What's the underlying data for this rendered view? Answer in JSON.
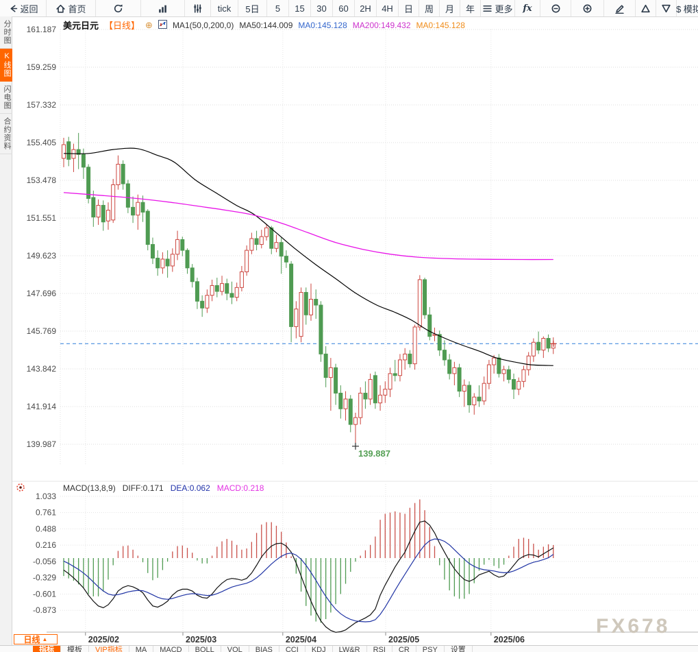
{
  "toolbar": {
    "items": [
      {
        "id": "back",
        "label": "返回",
        "icon": "back"
      },
      {
        "id": "home",
        "label": "首页",
        "icon": "home"
      },
      {
        "id": "refresh",
        "icon": "refresh"
      },
      {
        "id": "column-chart",
        "icon": "column-chart"
      },
      {
        "id": "indicator-settings",
        "icon": "sliders"
      },
      {
        "id": "tick",
        "label": "tick"
      },
      {
        "id": "5d",
        "label": "5日"
      },
      {
        "id": "m5",
        "label": "5"
      },
      {
        "id": "m15",
        "label": "15"
      },
      {
        "id": "m30",
        "label": "30"
      },
      {
        "id": "m60",
        "label": "60"
      },
      {
        "id": "h2",
        "label": "2H"
      },
      {
        "id": "h4",
        "label": "4H"
      },
      {
        "id": "day",
        "label": "日"
      },
      {
        "id": "week",
        "label": "周"
      },
      {
        "id": "month",
        "label": "月"
      },
      {
        "id": "year",
        "label": "年"
      },
      {
        "id": "more",
        "label": "更多",
        "icon": "menu"
      },
      {
        "id": "fx",
        "label": "fx",
        "fx": true
      },
      {
        "id": "zoom-out",
        "icon": "zoom-out"
      },
      {
        "id": "zoom-in",
        "icon": "zoom-in"
      },
      {
        "id": "draw",
        "icon": "pencil"
      },
      {
        "id": "pattern-up",
        "icon": "tri-up"
      },
      {
        "id": "pattern-down",
        "icon": "tri-down"
      },
      {
        "id": "sim-trade",
        "label": "$ 模拟交易"
      }
    ]
  },
  "sidebar": {
    "tabs": [
      {
        "id": "time-share",
        "label": "分时图",
        "active": false
      },
      {
        "id": "kline",
        "label": "K线图",
        "active": true
      },
      {
        "id": "lightning",
        "label": "闪电图",
        "active": false
      },
      {
        "id": "contract-info",
        "label": "合约资料",
        "active": false
      }
    ]
  },
  "price_panel": {
    "symbol": "美元日元",
    "period_tag": "【日线】",
    "expand_icon": "⊕",
    "ma_items": [
      {
        "text": "MA1(50,0,200,0)",
        "color": "#333333"
      },
      {
        "text": "MA50:144.009",
        "color": "#333333"
      },
      {
        "text": "MA0:145.128",
        "color": "#3366cc"
      },
      {
        "text": "MA200:149.432",
        "color": "#cc33cc"
      },
      {
        "text": "MA0:145.128",
        "color": "#ef8c1a"
      }
    ]
  },
  "macd_panel": {
    "items": [
      {
        "text": "MACD(13,8,9)",
        "color": "#333333"
      },
      {
        "text": "DIFF:0.171",
        "color": "#333333"
      },
      {
        "text": "DEA:0.062",
        "color": "#2233aa"
      },
      {
        "text": "MACD:0.218",
        "color": "#e333e3"
      }
    ]
  },
  "bottom": {
    "period_button_label": "日线",
    "period_button_arrow": "▲",
    "tabs": [
      {
        "label": "指标",
        "style": "active"
      },
      {
        "label": "模板",
        "style": ""
      },
      {
        "label": "VIP指标",
        "style": "vip"
      },
      {
        "label": "MA",
        "style": ""
      },
      {
        "label": "MACD",
        "style": ""
      },
      {
        "label": "BOLL",
        "style": ""
      },
      {
        "label": "VOL",
        "style": ""
      },
      {
        "label": "BIAS",
        "style": ""
      },
      {
        "label": "CCI",
        "style": ""
      },
      {
        "label": "KDJ",
        "style": ""
      },
      {
        "label": "LW&R",
        "style": ""
      },
      {
        "label": "RSI",
        "style": ""
      },
      {
        "label": "CR",
        "style": ""
      },
      {
        "label": "PSY",
        "style": ""
      },
      {
        "label": "设置",
        "style": ""
      }
    ]
  },
  "watermark": "FX678",
  "chart_data": {
    "type": "candlestick+macd",
    "symbol": "美元日元",
    "period": "日线",
    "colors": {
      "up": "#cc453e",
      "down": "#4f9b52",
      "ma50": "#000000",
      "ma200": "#e814e8",
      "diff": "#111111",
      "dea": "#2135a5",
      "hist_up": "#c9504a",
      "hist_down": "#4f9b52",
      "price_line": "#2f7fd9",
      "low_label": "#55a055",
      "grid": "#dcdcdc",
      "axis_text": "#4a4a4a"
    },
    "price_axis": [
      161.187,
      159.259,
      157.332,
      155.405,
      153.478,
      151.551,
      149.623,
      147.696,
      145.769,
      143.842,
      141.914,
      139.987
    ],
    "macd_axis": [
      1.033,
      0.761,
      0.488,
      0.216,
      -0.056,
      -0.329,
      -0.601,
      -0.873
    ],
    "months": [
      {
        "index": 4.4,
        "label": "2025/02"
      },
      {
        "index": 24.1,
        "label": "2025/03"
      },
      {
        "index": 44.3,
        "label": "2025/04"
      },
      {
        "index": 65.1,
        "label": "2025/05"
      },
      {
        "index": 86.4,
        "label": "2025/06"
      }
    ],
    "current_price": 145.128,
    "low_marker": {
      "index": 59,
      "price": 139.887,
      "label": "139.887"
    },
    "last_marker": {
      "index": 99,
      "price": 145.128
    },
    "candles": [
      [
        154.6,
        155.65,
        154.15,
        155.3
      ],
      [
        155.45,
        155.7,
        154.2,
        154.55
      ],
      [
        154.6,
        155.35,
        153.9,
        155.05
      ],
      [
        155.05,
        155.9,
        154.05,
        154.8
      ],
      [
        154.8,
        155.1,
        153.55,
        154.15
      ],
      [
        154.15,
        154.3,
        152.3,
        152.55
      ],
      [
        152.6,
        152.95,
        151.1,
        151.6
      ],
      [
        151.6,
        152.5,
        151.2,
        152.2
      ],
      [
        152.2,
        152.45,
        150.9,
        151.35
      ],
      [
        151.4,
        152.35,
        150.95,
        151.95
      ],
      [
        151.45,
        153.55,
        151.3,
        153.25
      ],
      [
        153.25,
        154.75,
        153.0,
        154.3
      ],
      [
        154.3,
        154.5,
        153.0,
        153.3
      ],
      [
        153.3,
        153.5,
        151.8,
        152.1
      ],
      [
        152.1,
        152.65,
        151.3,
        151.7
      ],
      [
        151.7,
        152.75,
        150.95,
        152.35
      ],
      [
        152.35,
        152.7,
        151.35,
        151.85
      ],
      [
        151.9,
        152.0,
        149.9,
        150.2
      ],
      [
        150.2,
        150.55,
        149.2,
        149.5
      ],
      [
        149.5,
        149.9,
        148.6,
        149.0
      ],
      [
        149.0,
        149.8,
        148.7,
        149.45
      ],
      [
        149.45,
        149.9,
        148.5,
        149.1
      ],
      [
        149.1,
        150.0,
        148.8,
        149.7
      ],
      [
        149.7,
        150.9,
        149.4,
        150.45
      ],
      [
        150.45,
        150.6,
        149.6,
        149.9
      ],
      [
        149.9,
        150.0,
        148.7,
        149.0
      ],
      [
        149.0,
        149.2,
        148.0,
        148.3
      ],
      [
        148.3,
        148.5,
        146.9,
        147.3
      ],
      [
        147.3,
        147.6,
        146.5,
        146.95
      ],
      [
        146.95,
        147.9,
        146.7,
        147.6
      ],
      [
        147.6,
        148.4,
        147.3,
        148.1
      ],
      [
        148.1,
        148.5,
        147.5,
        147.8
      ],
      [
        147.8,
        148.6,
        147.6,
        148.2
      ],
      [
        148.2,
        148.45,
        147.35,
        147.7
      ],
      [
        147.7,
        148.3,
        147.15,
        147.5
      ],
      [
        147.5,
        148.25,
        147.3,
        148.0
      ],
      [
        148.0,
        149.1,
        147.8,
        148.8
      ],
      [
        148.8,
        150.15,
        148.6,
        149.9
      ],
      [
        149.9,
        150.8,
        149.7,
        150.5
      ],
      [
        150.5,
        150.9,
        149.9,
        150.2
      ],
      [
        150.2,
        150.95,
        150.0,
        150.6
      ],
      [
        150.6,
        151.25,
        150.4,
        151.05
      ],
      [
        151.05,
        151.15,
        149.7,
        150.0
      ],
      [
        150.0,
        150.7,
        149.8,
        150.3
      ],
      [
        150.3,
        150.55,
        148.7,
        149.6
      ],
      [
        149.6,
        149.9,
        149.0,
        149.3
      ],
      [
        149.2,
        149.35,
        145.2,
        146.0
      ],
      [
        146.0,
        147.3,
        145.4,
        146.9
      ],
      [
        145.5,
        148.0,
        145.2,
        147.75
      ],
      [
        147.75,
        148.0,
        146.1,
        146.6
      ],
      [
        146.6,
        148.2,
        146.3,
        147.4
      ],
      [
        147.4,
        147.9,
        146.4,
        147.1
      ],
      [
        147.1,
        147.3,
        144.2,
        144.6
      ],
      [
        144.6,
        145.0,
        142.9,
        143.4
      ],
      [
        143.4,
        144.4,
        141.7,
        143.9
      ],
      [
        143.9,
        144.1,
        142.0,
        142.6
      ],
      [
        142.6,
        143.0,
        141.3,
        141.8
      ],
      [
        141.8,
        142.7,
        141.2,
        142.3
      ],
      [
        142.3,
        142.5,
        140.6,
        141.0
      ],
      [
        141.0,
        141.6,
        139.887,
        141.35
      ],
      [
        141.35,
        142.9,
        141.0,
        142.6
      ],
      [
        142.6,
        143.2,
        141.8,
        142.3
      ],
      [
        142.3,
        143.6,
        142.0,
        143.3
      ],
      [
        143.5,
        143.7,
        141.8,
        142.1
      ],
      [
        142.1,
        143.0,
        141.7,
        142.5
      ],
      [
        142.5,
        143.2,
        142.1,
        142.8
      ],
      [
        142.8,
        143.9,
        142.4,
        143.6
      ],
      [
        143.6,
        144.3,
        143.2,
        143.5
      ],
      [
        143.5,
        144.6,
        143.2,
        144.3
      ],
      [
        144.3,
        144.9,
        143.8,
        144.6
      ],
      [
        144.6,
        144.8,
        143.9,
        144.1
      ],
      [
        144.1,
        146.1,
        143.8,
        145.98
      ],
      [
        145.98,
        148.63,
        145.8,
        148.4
      ],
      [
        148.4,
        148.5,
        146.4,
        146.6
      ],
      [
        146.6,
        147.0,
        145.3,
        145.5
      ],
      [
        145.55,
        145.95,
        145.25,
        145.6
      ],
      [
        145.6,
        145.8,
        144.5,
        144.8
      ],
      [
        144.8,
        145.3,
        144.0,
        144.3
      ],
      [
        144.3,
        144.6,
        143.3,
        143.6
      ],
      [
        143.6,
        144.2,
        143.0,
        143.9
      ],
      [
        143.9,
        144.1,
        142.4,
        142.7
      ],
      [
        142.7,
        143.3,
        141.9,
        143.0
      ],
      [
        143.0,
        143.2,
        141.6,
        142.0
      ],
      [
        142.0,
        142.6,
        141.5,
        142.4
      ],
      [
        142.4,
        143.0,
        141.9,
        142.2
      ],
      [
        142.2,
        143.45,
        142.0,
        143.1
      ],
      [
        143.1,
        144.3,
        142.8,
        144.05
      ],
      [
        144.05,
        144.55,
        143.6,
        144.4
      ],
      [
        144.4,
        144.6,
        143.4,
        143.6
      ],
      [
        143.6,
        144.0,
        143.2,
        143.8
      ],
      [
        143.8,
        144.0,
        143.1,
        143.3
      ],
      [
        143.3,
        143.6,
        142.3,
        142.8
      ],
      [
        142.8,
        143.4,
        142.5,
        143.2
      ],
      [
        143.2,
        144.0,
        142.9,
        143.8
      ],
      [
        143.8,
        144.7,
        143.5,
        144.5
      ],
      [
        144.5,
        145.4,
        144.2,
        145.2
      ],
      [
        145.2,
        145.75,
        144.6,
        144.8
      ],
      [
        144.8,
        145.5,
        144.4,
        145.4
      ],
      [
        145.4,
        145.6,
        144.7,
        144.9
      ],
      [
        144.9,
        145.45,
        144.6,
        145.128
      ]
    ],
    "ma50_points": [
      [
        0,
        154.85
      ],
      [
        5.1,
        154.85
      ],
      [
        10,
        155.05
      ],
      [
        14.8,
        155.1
      ],
      [
        19,
        154.75
      ],
      [
        22.4,
        154.4
      ],
      [
        26.6,
        153.5
      ],
      [
        30.7,
        152.85
      ],
      [
        34.9,
        152.2
      ],
      [
        38.4,
        151.75
      ],
      [
        42.5,
        150.9
      ],
      [
        46.7,
        150.0
      ],
      [
        50.8,
        149.2
      ],
      [
        55,
        148.45
      ],
      [
        59.1,
        147.7
      ],
      [
        63.3,
        147.1
      ],
      [
        66.8,
        146.75
      ],
      [
        70.2,
        146.35
      ],
      [
        73.7,
        145.8
      ],
      [
        77.1,
        145.4
      ],
      [
        80.6,
        145.05
      ],
      [
        84,
        144.75
      ],
      [
        87.5,
        144.4
      ],
      [
        91,
        144.2
      ],
      [
        94.5,
        144.05
      ],
      [
        99,
        144.009
      ]
    ],
    "ma200_points": [
      [
        0,
        152.85
      ],
      [
        7.9,
        152.7
      ],
      [
        14.8,
        152.55
      ],
      [
        21.7,
        152.35
      ],
      [
        28.7,
        152.1
      ],
      [
        32.8,
        151.95
      ],
      [
        38.4,
        151.7
      ],
      [
        43.9,
        151.3
      ],
      [
        49.4,
        150.8
      ],
      [
        55,
        150.3
      ],
      [
        60.5,
        149.95
      ],
      [
        66.1,
        149.7
      ],
      [
        71.6,
        149.55
      ],
      [
        78.5,
        149.47
      ],
      [
        85.5,
        149.44
      ],
      [
        92.4,
        149.43
      ],
      [
        99,
        149.432
      ]
    ],
    "macd": {
      "params": "MACD(13,8,9)",
      "diff": [
        -0.2,
        -0.26,
        -0.33,
        -0.41,
        -0.5,
        -0.62,
        -0.72,
        -0.8,
        -0.83,
        -0.78,
        -0.68,
        -0.55,
        -0.49,
        -0.46,
        -0.48,
        -0.52,
        -0.58,
        -0.7,
        -0.8,
        -0.82,
        -0.78,
        -0.72,
        -0.62,
        -0.55,
        -0.52,
        -0.52,
        -0.55,
        -0.62,
        -0.66,
        -0.67,
        -0.6,
        -0.5,
        -0.42,
        -0.36,
        -0.34,
        -0.35,
        -0.37,
        -0.34,
        -0.25,
        -0.12,
        0.02,
        0.12,
        0.2,
        0.24,
        0.25,
        0.2,
        0.1,
        -0.08,
        -0.3,
        -0.52,
        -0.72,
        -0.9,
        -1.05,
        -1.15,
        -1.21,
        -1.24,
        -1.23,
        -1.2,
        -1.14,
        -1.08,
        -1.04,
        -1.0,
        -0.95,
        -0.85,
        -0.62,
        -0.45,
        -0.3,
        -0.15,
        -0.02,
        0.1,
        0.28,
        0.45,
        0.6,
        0.62,
        0.55,
        0.42,
        0.25,
        0.1,
        -0.05,
        -0.18,
        -0.28,
        -0.36,
        -0.39,
        -0.35,
        -0.28,
        -0.25,
        -0.22,
        -0.28,
        -0.32,
        -0.3,
        -0.22,
        -0.12,
        -0.02,
        0.03,
        0.06,
        0.05,
        0.02,
        0.07,
        0.12,
        0.171
      ],
      "dea": [
        -0.05,
        -0.09,
        -0.14,
        -0.19,
        -0.25,
        -0.32,
        -0.4,
        -0.48,
        -0.55,
        -0.6,
        -0.62,
        -0.61,
        -0.59,
        -0.565,
        -0.55,
        -0.54,
        -0.545,
        -0.575,
        -0.615,
        -0.655,
        -0.68,
        -0.69,
        -0.675,
        -0.65,
        -0.625,
        -0.605,
        -0.595,
        -0.6,
        -0.615,
        -0.625,
        -0.62,
        -0.595,
        -0.56,
        -0.52,
        -0.485,
        -0.46,
        -0.44,
        -0.42,
        -0.385,
        -0.33,
        -0.26,
        -0.18,
        -0.1,
        -0.03,
        0.03,
        0.07,
        0.085,
        0.05,
        -0.02,
        -0.12,
        -0.24,
        -0.37,
        -0.51,
        -0.64,
        -0.755,
        -0.855,
        -0.93,
        -0.985,
        -1.025,
        -1.05,
        -1.06,
        -1.065,
        -1.06,
        -1.03,
        -0.94,
        -0.82,
        -0.68,
        -0.54,
        -0.4,
        -0.27,
        -0.14,
        -0.01,
        0.11,
        0.22,
        0.29,
        0.32,
        0.31,
        0.28,
        0.22,
        0.14,
        0.06,
        -0.02,
        -0.09,
        -0.14,
        -0.175,
        -0.195,
        -0.205,
        -0.215,
        -0.235,
        -0.245,
        -0.24,
        -0.215,
        -0.18,
        -0.14,
        -0.1,
        -0.07,
        -0.05,
        -0.025,
        0.005,
        0.062
      ]
    }
  }
}
